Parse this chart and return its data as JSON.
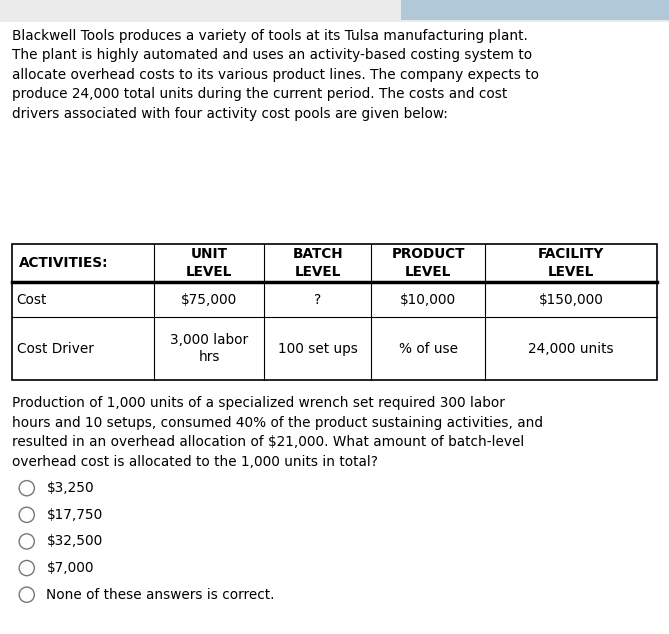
{
  "bg_color": "#ebebeb",
  "content_bg": "#ffffff",
  "top_bar_color": "#b0c8d8",
  "intro_text": "Blackwell Tools produces a variety of tools at its Tulsa manufacturing plant.\nThe plant is highly automated and uses an activity-based costing system to\nallocate overhead costs to its various product lines. The company expects to\nproduce 24,000 total units during the current period. The costs and cost\ndrivers associated with four activity cost pools are given below:",
  "table_headers": [
    "ACTIVITIES:",
    "UNIT\nLEVEL",
    "BATCH\nLEVEL",
    "PRODUCT\nLEVEL",
    "FACILITY\nLEVEL"
  ],
  "table_row1": [
    "Cost",
    "$75,000",
    "?",
    "$10,000",
    "$150,000"
  ],
  "table_row2": [
    "Cost Driver",
    "3,000 labor\nhrs",
    "100 set ups",
    "% of use",
    "24,000 units"
  ],
  "question_text": "Production of 1,000 units of a specialized wrench set required 300 labor\nhours and 10 setups, consumed 40% of the product sustaining activities, and\nresulted in an overhead allocation of $21,000. What amount of batch-level\noverhead cost is allocated to the 1,000 units in total?",
  "options": [
    "$3,250",
    "$17,750",
    "$32,500",
    "$7,000",
    "None of these answers is correct."
  ],
  "font_size": 9.8,
  "font_family": "DejaVu Sans"
}
